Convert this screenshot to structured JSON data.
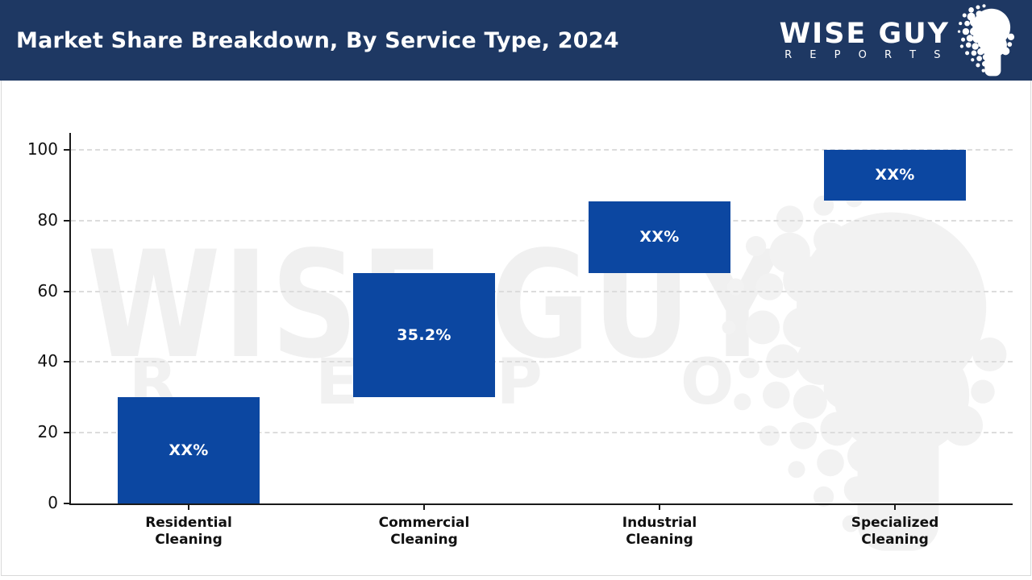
{
  "header": {
    "title": "Market Share Breakdown, By Service Type, 2024",
    "logo_line1": "WISE GUY",
    "logo_line2": "R E P O R T S",
    "bg_color": "#1e3863"
  },
  "watermark": {
    "line1": "WISE GUY",
    "line2": "R E P O R T S"
  },
  "chart_data": {
    "type": "bar",
    "subtype": "waterfall",
    "title": "Market Share Breakdown, By Service Type, 2024",
    "categories": [
      [
        "Residential",
        "Cleaning"
      ],
      [
        "Commercial",
        "Cleaning"
      ],
      [
        "Industrial",
        "Cleaning"
      ],
      [
        "Specialized",
        "Cleaning"
      ]
    ],
    "series": [
      {
        "name": "Market share (%)",
        "segments": [
          {
            "category": "Residential Cleaning",
            "start": 0,
            "end": 30,
            "label": "XX%"
          },
          {
            "category": "Commercial Cleaning",
            "start": 30,
            "end": 65.2,
            "label": "35.2%"
          },
          {
            "category": "Industrial Cleaning",
            "start": 65.2,
            "end": 85.5,
            "label": "XX%"
          },
          {
            "category": "Specialized Cleaning",
            "start": 85.7,
            "end": 100,
            "label": "XX%"
          }
        ]
      }
    ],
    "ylim": [
      0,
      100
    ],
    "yticks": [
      0,
      20,
      40,
      60,
      80,
      100
    ],
    "xlabel": "",
    "ylabel": "",
    "grid": "horizontal-dashed",
    "legend": "none",
    "bar_color": "#0c47a1",
    "bar_label_color": "#ffffff",
    "axis_color": "#1a1a1a",
    "gridline_color": "#dcdcdc"
  }
}
